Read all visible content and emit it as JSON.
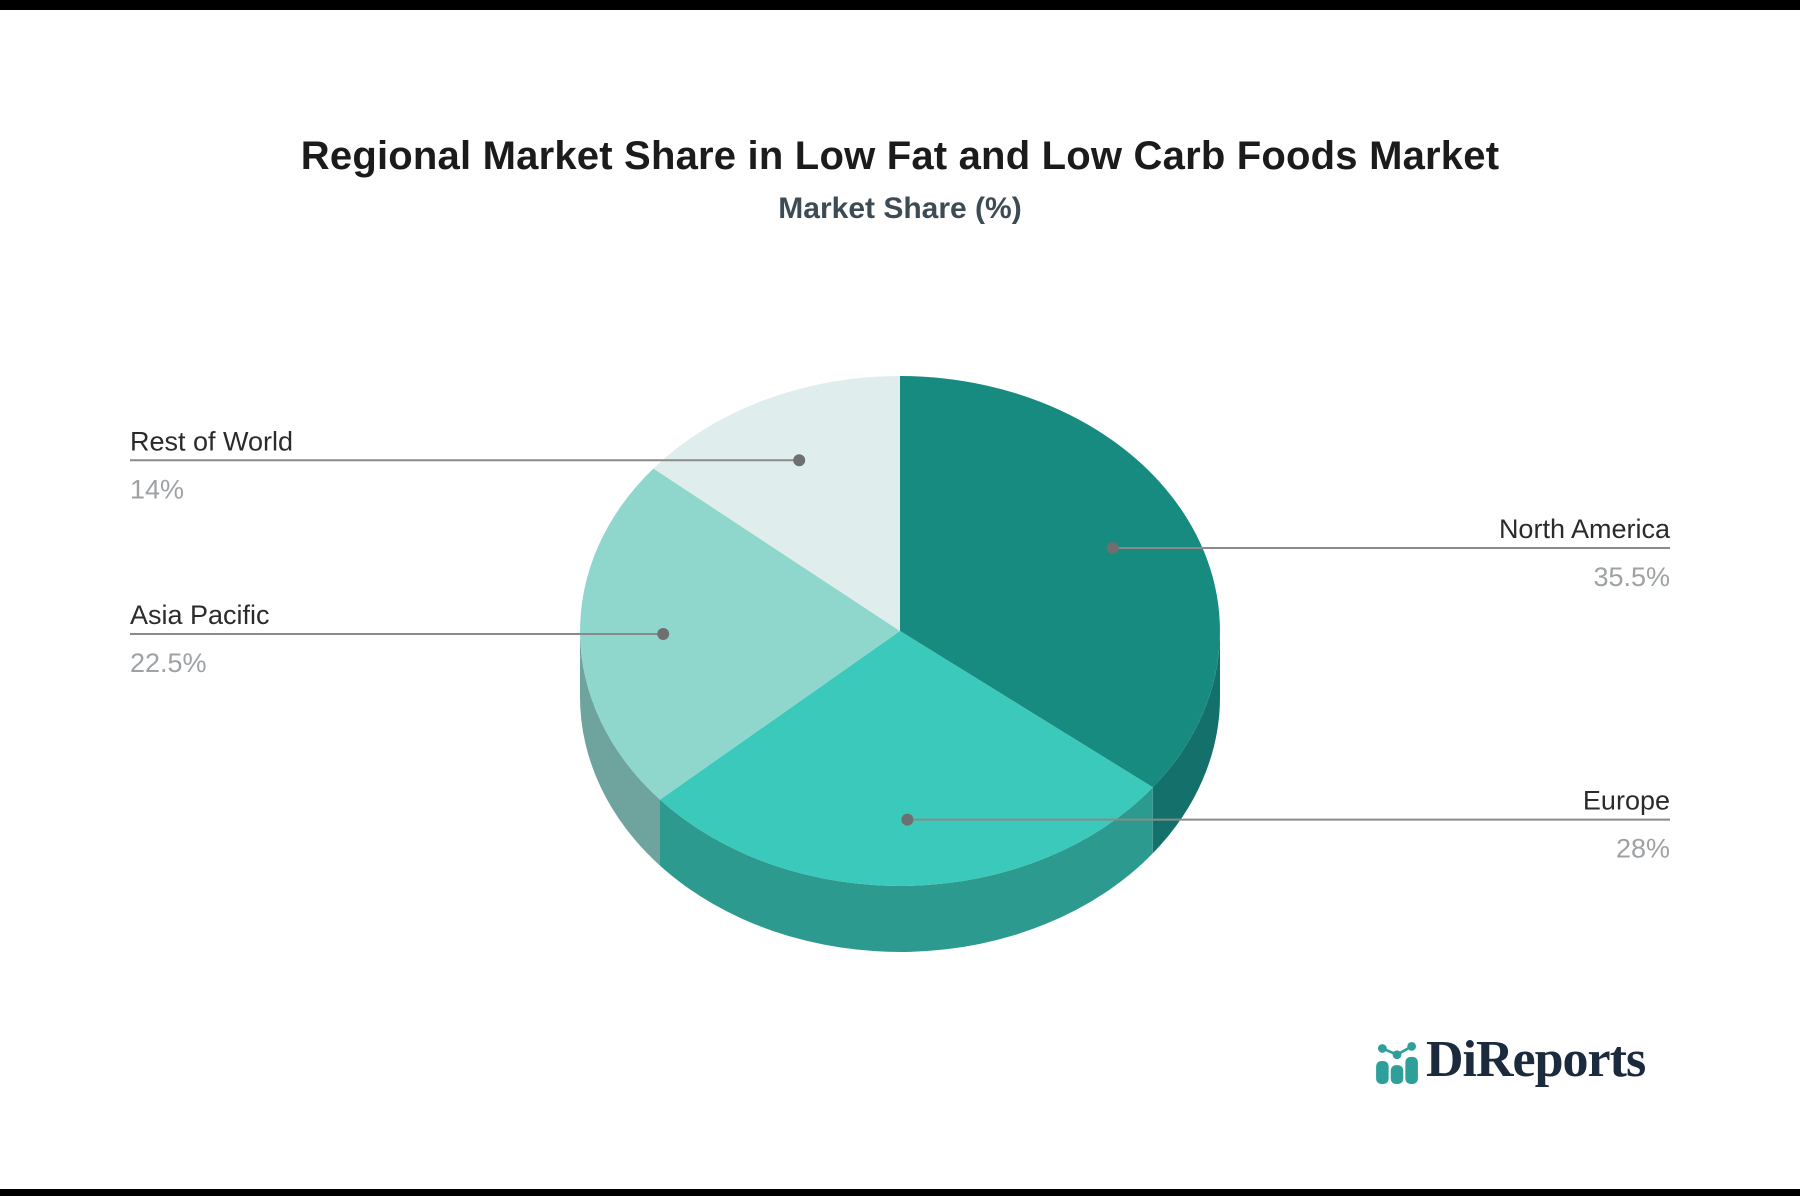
{
  "header": {
    "title": "Regional Market Share in Low Fat and Low Carb Foods Market",
    "subtitle": "Market Share (%)"
  },
  "chart_data": {
    "type": "pie",
    "title": "Regional Market Share in Low Fat and Low Carb Foods Market",
    "subtitle": "Market Share (%)",
    "unit": "%",
    "style": "3d-pie",
    "start_angle_deg": 0,
    "direction": "clockwise",
    "slices": [
      {
        "label": "North America",
        "value": 35.5,
        "display": "35.5%",
        "color": "#188b80",
        "side_color": "#13706a"
      },
      {
        "label": "Europe",
        "value": 28,
        "display": "28%",
        "color": "#3bc9bb",
        "side_color": "#2d9a8f"
      },
      {
        "label": "Asia Pacific",
        "value": 22.5,
        "display": "22.5%",
        "color": "#8fd6cc",
        "side_color": "#6fa39d"
      },
      {
        "label": "Rest of World",
        "value": 14,
        "display": "14%",
        "color": "#dfeeec",
        "side_color": "#b9cdca"
      }
    ],
    "label_text_color": "#2b2b2b",
    "value_text_color": "#9ea2a5",
    "leader_line_color": "#8a8a8a",
    "leader_dot_color": "#6f6f6f",
    "legend": "none"
  },
  "branding": {
    "logo_text": "DiReports",
    "logo_text_color": "#1b2a3d",
    "logo_accent_color": "#2f9f9a"
  }
}
